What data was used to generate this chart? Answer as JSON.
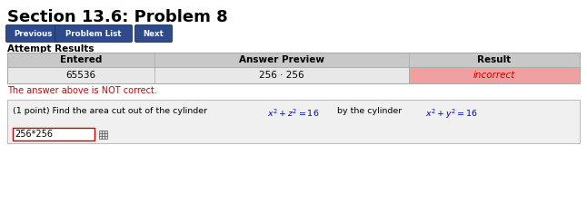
{
  "title": "Section 13.6: Problem 8",
  "buttons": [
    "Previous",
    "Problem List",
    "Next"
  ],
  "button_color": "#2e4a8c",
  "button_text_color": "#ffffff",
  "section_label": "Attempt Results",
  "table_headers": [
    "Entered",
    "Answer Preview",
    "Result"
  ],
  "table_row_entered": "65536",
  "table_row_preview": "256 · 256",
  "table_row_result": "incorrect",
  "header_bg": "#c8c8c8",
  "row_bg": "#e8e8e8",
  "result_bg": "#f0a0a0",
  "incorrect_color": "#cc0000",
  "not_correct_text": "The answer above is NOT correct.",
  "not_correct_color": "#cc0000",
  "problem_prefix": "(1 point) Find the area cut out of the cylinder ",
  "problem_mid": " by the cylinder ",
  "answer_box_text": "256*256",
  "bg_color": "#ffffff",
  "problem_box_bg": "#f0f0f0",
  "answer_box_border": "#cc0000",
  "table_border_color": "#aaaaaa",
  "grid_icon_color": "#555555"
}
